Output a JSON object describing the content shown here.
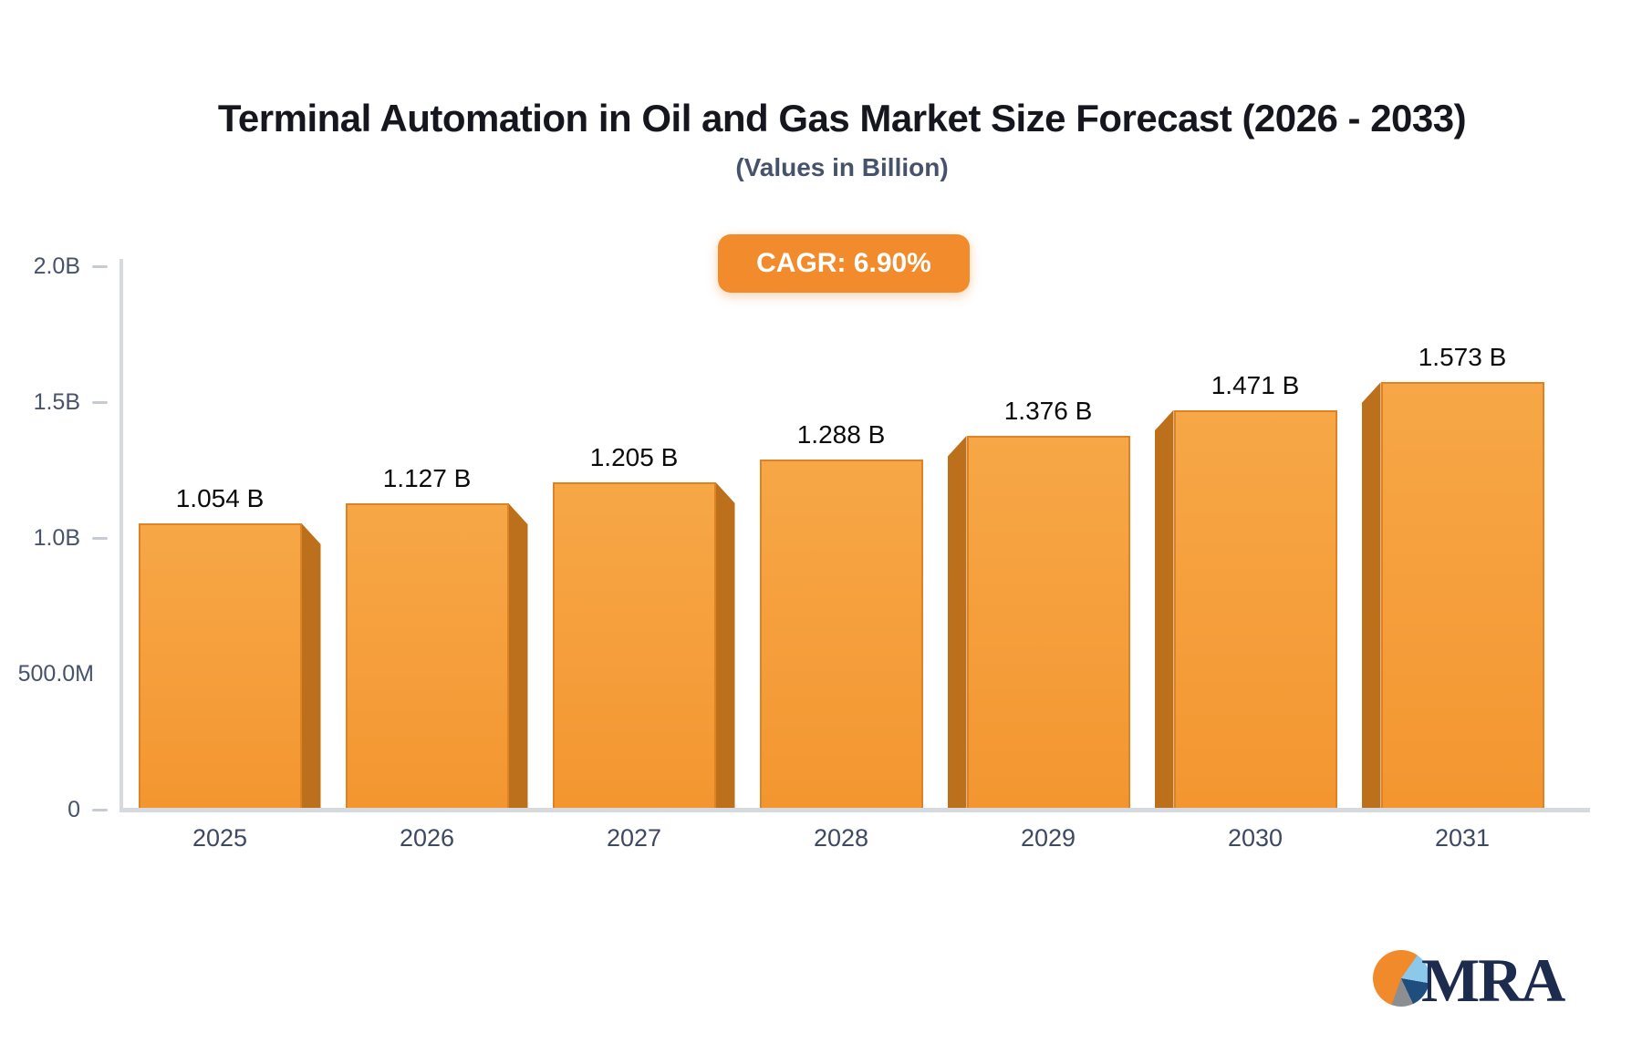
{
  "chart_data": {
    "type": "bar",
    "title": "Terminal Automation in Oil and Gas Market Size Forecast (2026 - 2033)",
    "subtitle": "(Values in Billion)",
    "cagr_label": "CAGR: 6.90%",
    "categories": [
      "2025",
      "2026",
      "2027",
      "2028",
      "2029",
      "2030",
      "2031"
    ],
    "values": [
      1.054,
      1.127,
      1.205,
      1.288,
      1.376,
      1.471,
      1.573
    ],
    "value_labels": [
      "1.054 B",
      "1.127 B",
      "1.205 B",
      "1.288 B",
      "1.376 B",
      "1.471 B",
      "1.573 B"
    ],
    "xlabel": "",
    "ylabel": "",
    "ylim": [
      0,
      2.0
    ],
    "yticks": [
      {
        "label": "2.0B",
        "value": 2.0,
        "tick": true
      },
      {
        "label": "1.5B",
        "value": 1.5,
        "tick": true
      },
      {
        "label": "1.0B",
        "value": 1.0,
        "tick": true
      },
      {
        "label": "500.0M",
        "value": 0.5,
        "tick": false
      },
      {
        "label": "0",
        "value": 0.0,
        "tick": true
      }
    ],
    "grid": false,
    "legend": false
  },
  "colors": {
    "accent_orange": "#F28B2B",
    "bar_front_top": "#F7A747",
    "bar_front_bottom": "#F39630",
    "bar_border": "#DD8326",
    "bar_side": "#BC701C",
    "axis_line": "#D6D9DE",
    "title_text": "#16161E",
    "subtitle_text": "#46526B",
    "axis_text": "#47536B",
    "value_text": "#0B0B0B",
    "badge_text": "#FFFFFF"
  },
  "logo": {
    "text": "MRA",
    "pie_chart_icon": "pie-chart-logo-icon",
    "pie_colors": {
      "orange": "#F08A2A",
      "light_blue": "#8CC8EA",
      "navy": "#1F4D7E",
      "gray": "#8D8E92"
    },
    "text_color": "#1D2B4F"
  }
}
